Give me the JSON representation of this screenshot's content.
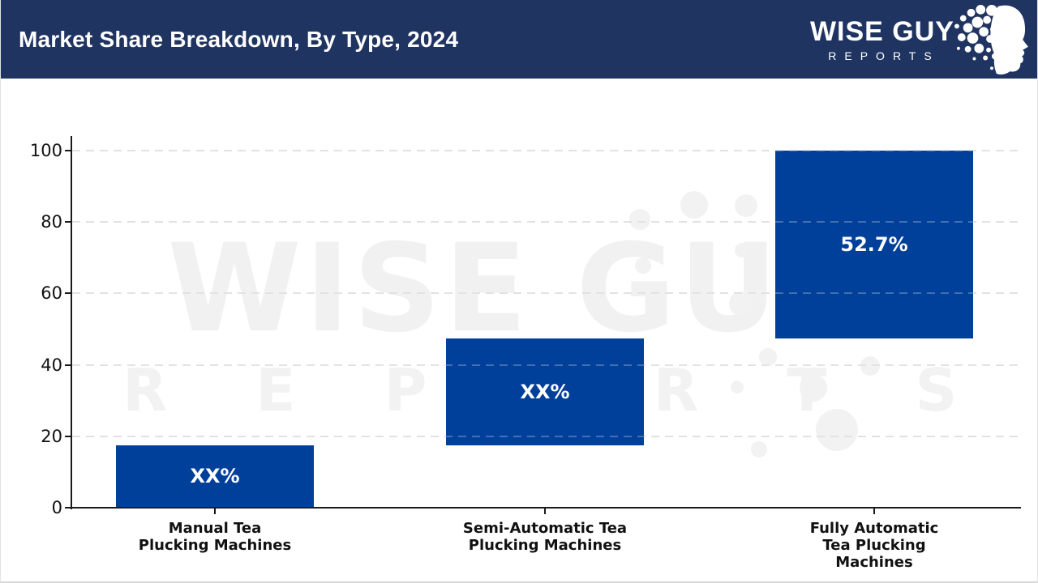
{
  "header": {
    "title": "Market Share Breakdown, By Type, 2024",
    "logo": {
      "line1": "WISE GUY",
      "line2": "REPORTS"
    }
  },
  "watermark": {
    "line1": "WISE GUY",
    "line2": "R E P O R T S"
  },
  "colors": {
    "header_bg": "#203462",
    "bar_fill": "#01409a",
    "bar_label_text": "#ffffff",
    "grid": "#d9d9d9",
    "axis": "#1a1a1a",
    "watermark": "#f1f1f1"
  },
  "chart_data": {
    "type": "bar",
    "subtype": "waterfall",
    "title": "Market Share Breakdown, By Type, 2024",
    "categories": [
      [
        "Manual Tea",
        "Plucking Machines"
      ],
      [
        "Semi-Automatic Tea",
        "Plucking Machines"
      ],
      [
        "Fully Automatic",
        "Tea Plucking",
        "Machines"
      ]
    ],
    "bars": [
      {
        "label": "XX%",
        "start": 0,
        "end": 17.5
      },
      {
        "label": "XX%",
        "start": 17.5,
        "end": 47.3
      },
      {
        "label": "52.7%",
        "start": 47.3,
        "end": 100
      }
    ],
    "ylim": [
      0,
      100
    ],
    "yticks": [
      0,
      20,
      40,
      60,
      80,
      100
    ],
    "xlabel": "",
    "ylabel": "",
    "grid": "dashed-horizontal",
    "legend": "none"
  }
}
